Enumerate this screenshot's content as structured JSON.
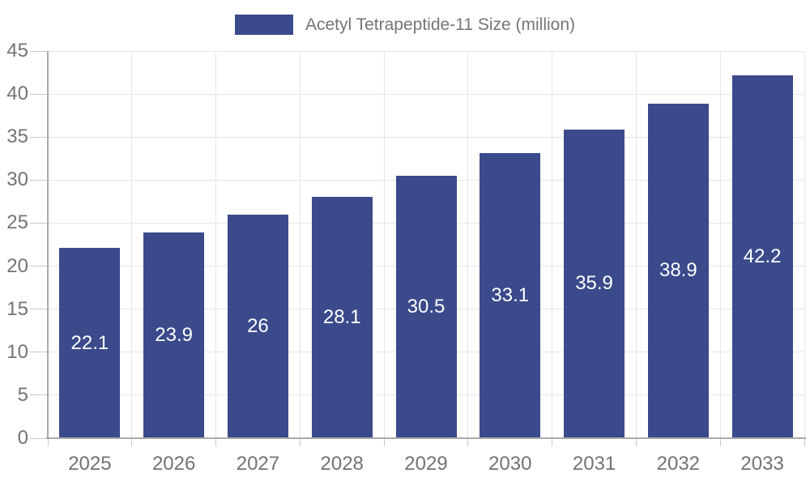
{
  "legend": {
    "label": "Acetyl Tetrapeptide-11 Size (million)"
  },
  "colors": {
    "bar": "#3A4A8B",
    "axis_line": "#ABABAB",
    "grid_line": "#E6E6E8",
    "tick_mark": "#C4C8CE",
    "tick_label": "#737373",
    "legend_text": "#757575",
    "value_label": "#FFFFFF",
    "background": "#FFFFFF"
  },
  "chart_data": {
    "type": "bar",
    "title": "Acetyl Tetrapeptide-11 Size (million)",
    "series": [
      {
        "name": "Acetyl Tetrapeptide-11 Size (million)",
        "values": [
          22.1,
          23.9,
          26,
          28.1,
          30.5,
          33.1,
          35.9,
          38.9,
          42.2
        ]
      }
    ],
    "categories": [
      "2025",
      "2026",
      "2027",
      "2028",
      "2029",
      "2030",
      "2031",
      "2032",
      "2033"
    ],
    "xlabel": "",
    "ylabel": "",
    "ylim": [
      0,
      45
    ],
    "yticks": [
      0,
      5,
      10,
      15,
      20,
      25,
      30,
      35,
      40,
      45
    ],
    "grid": true,
    "legend_position": "top-center",
    "value_label_position": "inside-center"
  }
}
